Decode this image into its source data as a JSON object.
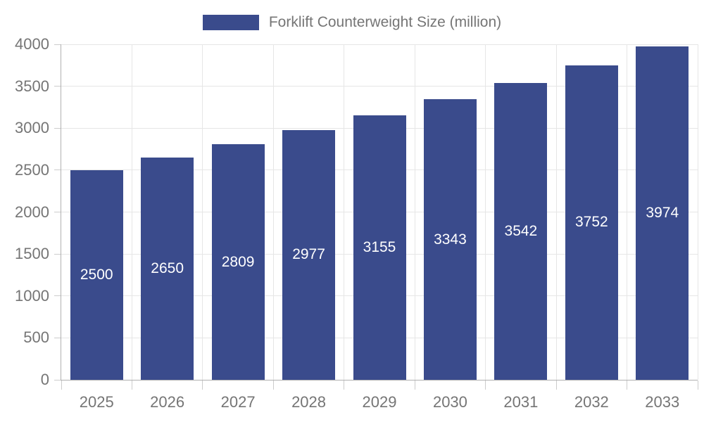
{
  "chart_data": {
    "type": "bar",
    "title": "Forklift Counterweight Size (million)",
    "legend_label": "Forklift Counterweight Size (million)",
    "legend_position": "top-center",
    "categories": [
      "2025",
      "2026",
      "2027",
      "2028",
      "2029",
      "2030",
      "2031",
      "2032",
      "2033"
    ],
    "values": [
      2500,
      2650,
      2809,
      2977,
      3155,
      3343,
      3542,
      3752,
      3974
    ],
    "xlabel": "",
    "ylabel": "",
    "ylim": [
      0,
      4000
    ],
    "ytick_step": 500,
    "grid": true,
    "bar_labels_shown": true,
    "colors": {
      "bar": "#3A4B8C",
      "bar_label": "#FFFFFF",
      "axis_text": "#757575",
      "gridline": "#E6E6E6",
      "axis_line": "#B0B0B0",
      "tick": "#CCCCCC",
      "background": "#FFFFFF"
    }
  }
}
